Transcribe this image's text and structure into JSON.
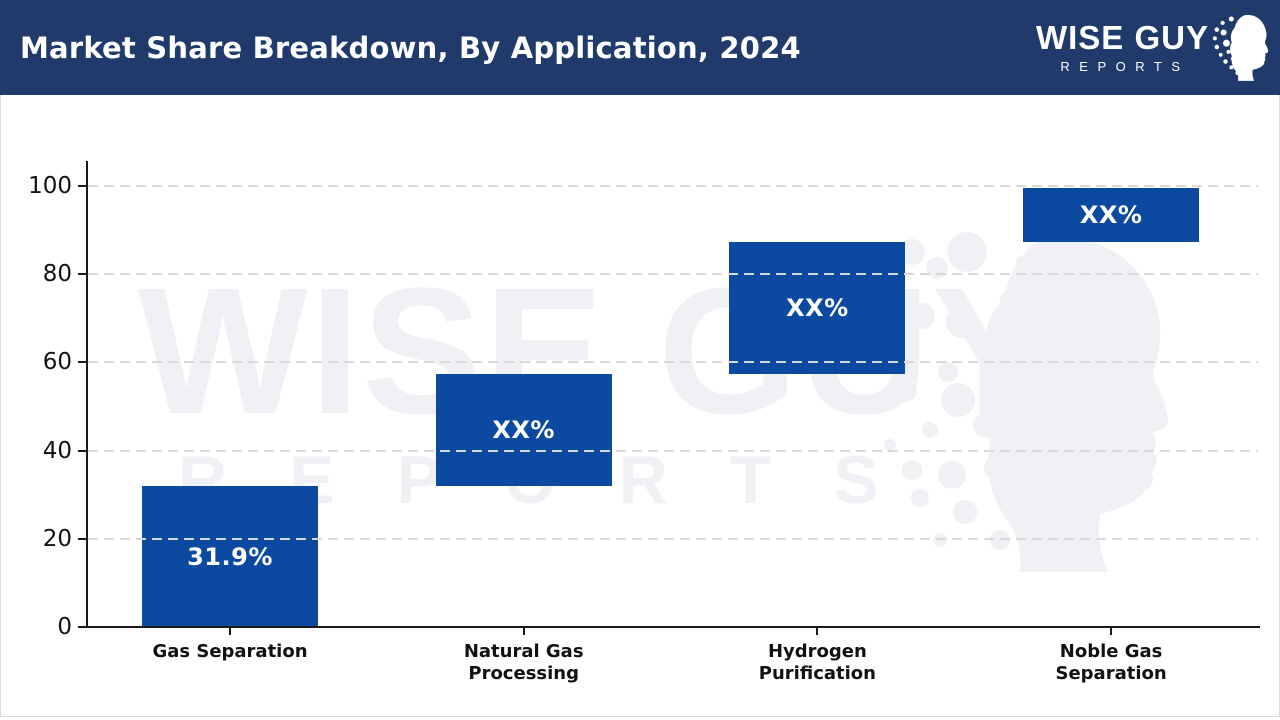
{
  "header": {
    "title": "Market Share Breakdown, By Application, 2024",
    "logo": {
      "name": "WISE GUY",
      "tagline": "REPORTS"
    }
  },
  "watermark": {
    "name": "WISE GUY",
    "tagline": "REPORTS"
  },
  "colors": {
    "header_bg": "#1f3a6b",
    "title_text": "#ffffff",
    "bar": "#0b4aa0",
    "bar_label": "#ffffff",
    "grid": "#d9d9d9",
    "axis": "#1a1a1a",
    "tick_label": "#111111",
    "watermark": "#f0f1f4",
    "frame_border": "#d9d9d9"
  },
  "chart_data": {
    "type": "bar",
    "variant": "waterfall",
    "title": "Market Share Breakdown, By Application, 2024",
    "categories": [
      "Gas Separation",
      "Natural Gas\nProcessing",
      "Hydrogen\nPurification",
      "Noble Gas\nSeparation"
    ],
    "series": [
      {
        "name": "Market share by application (%)",
        "segments": [
          {
            "category": "Gas Separation",
            "start": 0,
            "end": 31.9,
            "label": "31.9%"
          },
          {
            "category": "Natural Gas Processing",
            "start": 31.9,
            "end": 57.4,
            "label": "XX%"
          },
          {
            "category": "Hydrogen Purification",
            "start": 57.4,
            "end": 87.4,
            "label": "XX%"
          },
          {
            "category": "Noble Gas Separation",
            "start": 87.4,
            "end": 99.6,
            "label": "XX%"
          }
        ]
      }
    ],
    "xlabel": "",
    "ylabel": "",
    "ylim": [
      0,
      105
    ],
    "yticks": [
      0,
      20,
      40,
      60,
      80,
      100
    ],
    "grid": {
      "horizontal": true,
      "style": "dashed"
    },
    "legend": "none",
    "bar_labels_inside": true
  }
}
